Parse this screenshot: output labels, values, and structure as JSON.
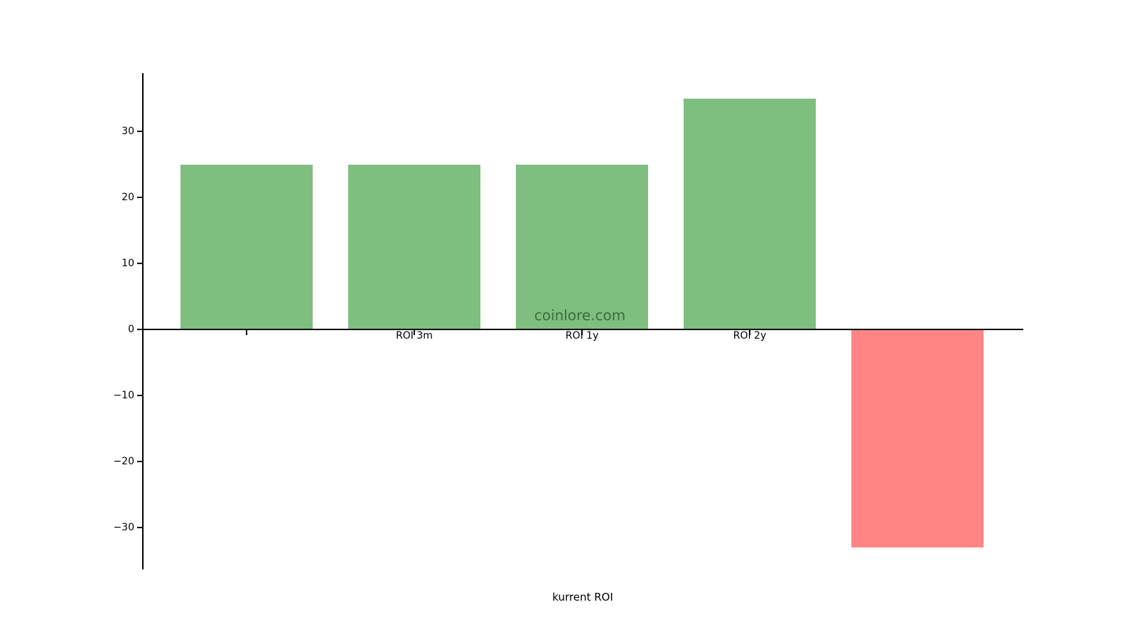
{
  "watermark": {
    "text": "coinlore.com",
    "color": "#3c6e3e"
  },
  "chart_data": {
    "type": "bar",
    "title": "",
    "xlabel": "kurrent ROI",
    "ylabel": "",
    "categories": [
      "",
      "ROI 3m",
      "ROI 1y",
      "ROI 2y",
      ""
    ],
    "values": [
      25,
      25,
      25,
      35,
      -33
    ],
    "bar_colors": [
      "#7ebe7e",
      "#7ebe7e",
      "#7ebe7e",
      "#7ebe7e",
      "#ff8585"
    ],
    "positive_color": "#7ebe7e",
    "negative_color": "#ff8585",
    "yticks": [
      {
        "label": "30",
        "value": 30
      },
      {
        "label": "20",
        "value": 20
      },
      {
        "label": "10",
        "value": 10
      },
      {
        "label": "0",
        "value": 0
      },
      {
        "label": "−10",
        "value": -10
      },
      {
        "label": "−20",
        "value": -20
      },
      {
        "label": "−30",
        "value": -30
      }
    ],
    "x_ticks_visible": [
      true,
      true,
      true,
      true,
      false
    ],
    "ylim": [
      -36.4,
      38.8
    ],
    "grid": false,
    "legend": null,
    "axis_color": "#000000",
    "background_color": "#ffffff"
  }
}
